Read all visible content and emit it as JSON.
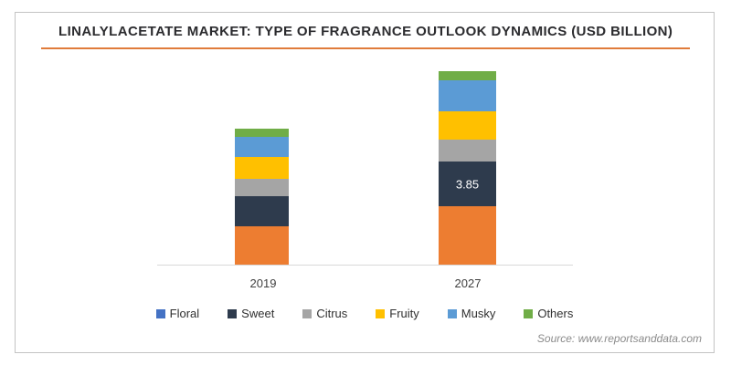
{
  "header": {
    "title": "LINALYLACETATE MARKET: TYPE OF FRAGRANCE OUTLOOK DYNAMICS (USD BILLION)",
    "underline_color": "#e07b3a"
  },
  "chart_data": {
    "type": "bar",
    "stacked": true,
    "title": "LINALYLACETATE MARKET: TYPE OF FRAGRANCE OUTLOOK DYNAMICS (USD BILLION)",
    "unit": "USD Billion",
    "categories": [
      "2019",
      "2027"
    ],
    "series": [
      {
        "name": "Floral",
        "legend_color": "#4472c4",
        "bar_color": "#ed7d31",
        "values": [
          3.3,
          5.03
        ]
      },
      {
        "name": "Sweet",
        "legend_color": "#2e3b4d",
        "bar_color": "#2e3b4d",
        "values": [
          2.59,
          3.85
        ]
      },
      {
        "name": "Citrus",
        "legend_color": "#a5a5a5",
        "bar_color": "#a5a5a5",
        "values": [
          1.49,
          1.89
        ]
      },
      {
        "name": "Fruity",
        "legend_color": "#ffc000",
        "bar_color": "#ffc000",
        "values": [
          1.89,
          2.44
        ]
      },
      {
        "name": "Musky",
        "legend_color": "#5b9bd5",
        "bar_color": "#5b9bd5",
        "values": [
          1.73,
          2.67
        ]
      },
      {
        "name": "Others",
        "legend_color": "#70ad47",
        "bar_color": "#70ad47",
        "values": [
          0.71,
          0.79
        ]
      }
    ],
    "data_labels": [
      {
        "category": "2027",
        "series": "Sweet",
        "text": "3.85"
      }
    ],
    "legend_position": "bottom",
    "grid": false,
    "axis": {
      "baseline_color": "#d9d9d9"
    }
  },
  "source": {
    "text": "Source: www.reportsanddata.com"
  }
}
